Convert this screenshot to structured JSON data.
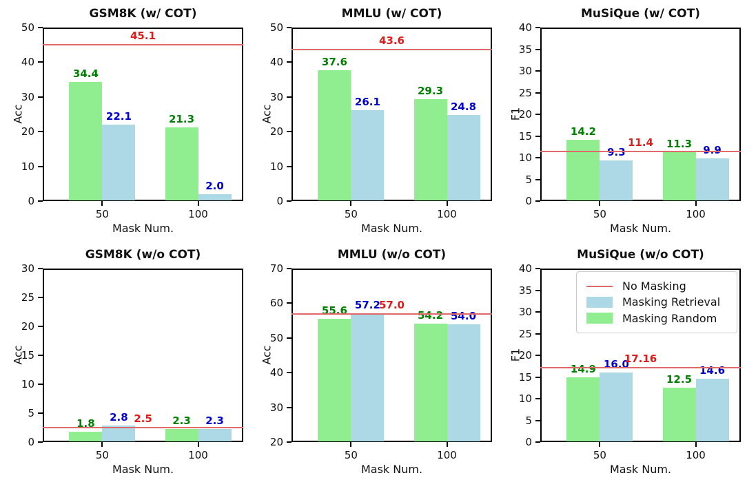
{
  "figure": {
    "background": "#ffffff"
  },
  "colors": {
    "bar_masking_random": "#90EE90",
    "bar_masking_retrieval": "#ADD8E6",
    "no_masking_line": "#e06a6a",
    "label_masking_random": "#008000",
    "label_masking_retrieval": "#0000CD",
    "label_no_masking": "#dd1c1c",
    "axis": "#000000"
  },
  "legend": {
    "entries": [
      {
        "label": "No Masking",
        "marker": "line",
        "color_key": "no_masking_line"
      },
      {
        "label": "Masking Retrieval",
        "marker": "patch",
        "color_key": "bar_masking_retrieval"
      },
      {
        "label": "Masking Random",
        "marker": "patch",
        "color_key": "bar_masking_random"
      }
    ]
  },
  "chart_data": [
    {
      "type": "bar",
      "title": "GSM8K (w/ COT)",
      "xlabel": "Mask Num.",
      "ylabel": "Acc",
      "categories": [
        "50",
        "100"
      ],
      "ylim": [
        0,
        50
      ],
      "yticks": [
        0,
        10,
        20,
        30,
        40,
        50
      ],
      "series": [
        {
          "name": "Masking Random",
          "values": [
            34.4,
            21.3
          ],
          "labels": [
            "34.4",
            "21.3"
          ]
        },
        {
          "name": "Masking Retrieval",
          "values": [
            22.1,
            2.0
          ],
          "labels": [
            "22.1",
            "2.0"
          ]
        }
      ],
      "baseline": {
        "name": "No Masking",
        "value": 45.1,
        "label": "45.1"
      },
      "show_legend": false
    },
    {
      "type": "bar",
      "title": "MMLU (w/ COT)",
      "xlabel": "Mask Num.",
      "ylabel": "Acc",
      "categories": [
        "50",
        "100"
      ],
      "ylim": [
        0,
        50
      ],
      "yticks": [
        0,
        10,
        20,
        30,
        40,
        50
      ],
      "series": [
        {
          "name": "Masking Random",
          "values": [
            37.6,
            29.3
          ],
          "labels": [
            "37.6",
            "29.3"
          ]
        },
        {
          "name": "Masking Retrieval",
          "values": [
            26.1,
            24.8
          ],
          "labels": [
            "26.1",
            "24.8"
          ]
        }
      ],
      "baseline": {
        "name": "No Masking",
        "value": 43.6,
        "label": "43.6"
      },
      "show_legend": false
    },
    {
      "type": "bar",
      "title": "MuSiQue (w/ COT)",
      "xlabel": "Mask Num.",
      "ylabel": "F1",
      "categories": [
        "50",
        "100"
      ],
      "ylim": [
        0,
        40
      ],
      "yticks": [
        0,
        5,
        10,
        15,
        20,
        25,
        30,
        35,
        40
      ],
      "series": [
        {
          "name": "Masking Random",
          "values": [
            14.2,
            11.3
          ],
          "labels": [
            "14.2",
            "11.3"
          ]
        },
        {
          "name": "Masking Retrieval",
          "values": [
            9.3,
            9.9
          ],
          "labels": [
            "9.3",
            "9.9"
          ]
        }
      ],
      "baseline": {
        "name": "No Masking",
        "value": 11.4,
        "label": "11.4"
      },
      "show_legend": false
    },
    {
      "type": "bar",
      "title": "GSM8K (w/o COT)",
      "xlabel": "Mask Num.",
      "ylabel": "Acc",
      "categories": [
        "50",
        "100"
      ],
      "ylim": [
        0,
        30
      ],
      "yticks": [
        0,
        5,
        10,
        15,
        20,
        25,
        30
      ],
      "series": [
        {
          "name": "Masking Random",
          "values": [
            1.8,
            2.3
          ],
          "labels": [
            "1.8",
            "2.3"
          ]
        },
        {
          "name": "Masking Retrieval",
          "values": [
            2.8,
            2.3
          ],
          "labels": [
            "2.8",
            "2.3"
          ]
        }
      ],
      "baseline": {
        "name": "No Masking",
        "value": 2.5,
        "label": "2.5"
      },
      "show_legend": false
    },
    {
      "type": "bar",
      "title": "MMLU (w/o COT)",
      "xlabel": "Mask Num.",
      "ylabel": "Acc",
      "categories": [
        "50",
        "100"
      ],
      "ylim": [
        20,
        70
      ],
      "yticks": [
        20,
        30,
        40,
        50,
        60,
        70
      ],
      "series": [
        {
          "name": "Masking Random",
          "values": [
            55.6,
            54.2
          ],
          "labels": [
            "55.6",
            "54.2"
          ]
        },
        {
          "name": "Masking Retrieval",
          "values": [
            57.2,
            54.0
          ],
          "labels": [
            "57.2",
            "54.0"
          ]
        }
      ],
      "baseline": {
        "name": "No Masking",
        "value": 57.0,
        "label": "57.0"
      },
      "show_legend": false
    },
    {
      "type": "bar",
      "title": "MuSiQue (w/o COT)",
      "xlabel": "Mask Num.",
      "ylabel": "F1",
      "categories": [
        "50",
        "100"
      ],
      "ylim": [
        0,
        40
      ],
      "yticks": [
        0,
        5,
        10,
        15,
        20,
        25,
        30,
        35,
        40
      ],
      "series": [
        {
          "name": "Masking Random",
          "values": [
            14.9,
            12.5
          ],
          "labels": [
            "14.9",
            "12.5"
          ]
        },
        {
          "name": "Masking Retrieval",
          "values": [
            16.0,
            14.6
          ],
          "labels": [
            "16.0",
            "14.6"
          ]
        }
      ],
      "baseline": {
        "name": "No Masking",
        "value": 17.16,
        "label": "17.16"
      },
      "show_legend": true
    }
  ]
}
